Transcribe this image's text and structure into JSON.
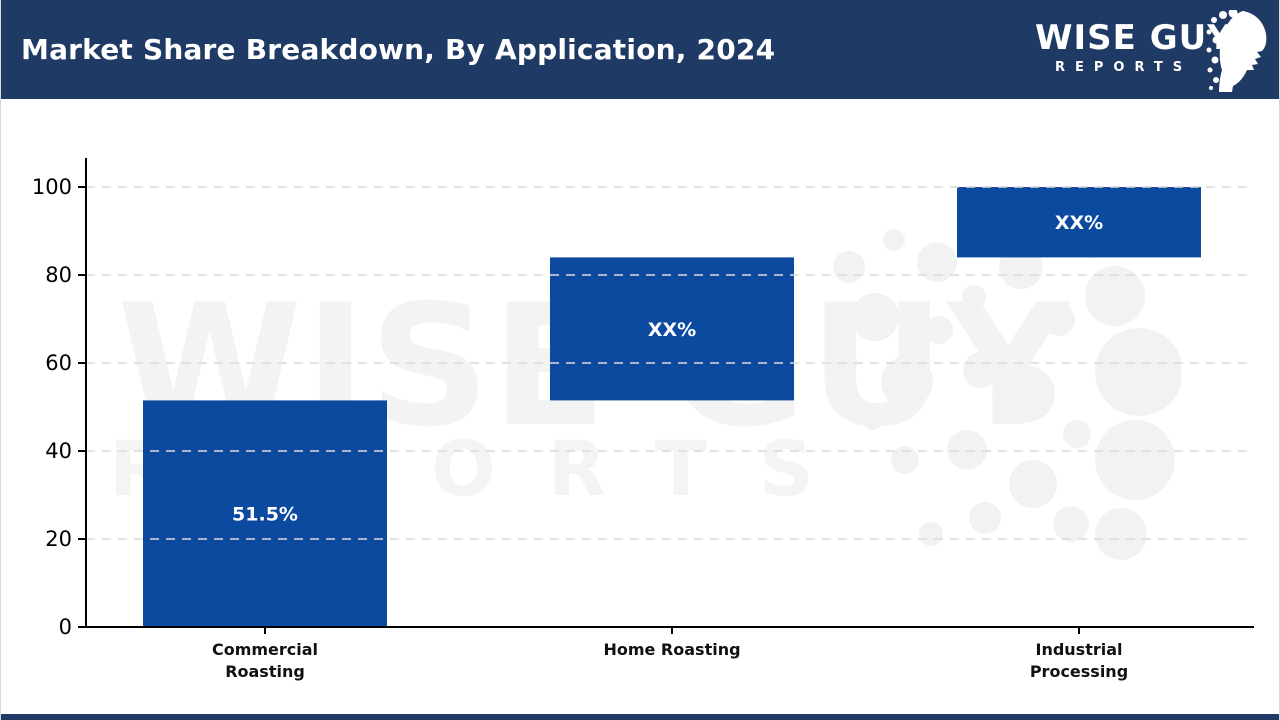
{
  "header": {
    "title": "Market Share Breakdown, By Application, 2024",
    "bg_color": "#203A66",
    "logo": {
      "primary": "WISE GUY",
      "secondary": "REPORTS"
    }
  },
  "watermark": {
    "primary": "WISE GUY",
    "secondary": "REPORTS"
  },
  "chart_data": {
    "type": "bar",
    "subtype": "floating-segment-bars",
    "title": "Market Share Breakdown, By Application, 2024",
    "categories": [
      "Commercial Roasting",
      "Home Roasting",
      "Industrial Processing"
    ],
    "bars": [
      {
        "lines": [
          "Commercial",
          "Roasting"
        ],
        "start": 0,
        "end": 51.5,
        "label": "51.5%"
      },
      {
        "lines": [
          "Home Roasting"
        ],
        "start": 51.5,
        "end": 84,
        "label": "XX%"
      },
      {
        "lines": [
          "Industrial",
          "Processing"
        ],
        "start": 84,
        "end": 100,
        "label": "XX%"
      }
    ],
    "yticks": [
      0,
      20,
      40,
      60,
      80,
      100
    ],
    "ylim": [
      0,
      106
    ],
    "xlabel": "",
    "ylabel": "",
    "grid": "horizontal-dashed",
    "legend": "none",
    "bar_color": "#0B4A9F",
    "bar_label_color": "#ffffff",
    "grid_color": "#d9d9d9",
    "axis_color": "#000000"
  }
}
